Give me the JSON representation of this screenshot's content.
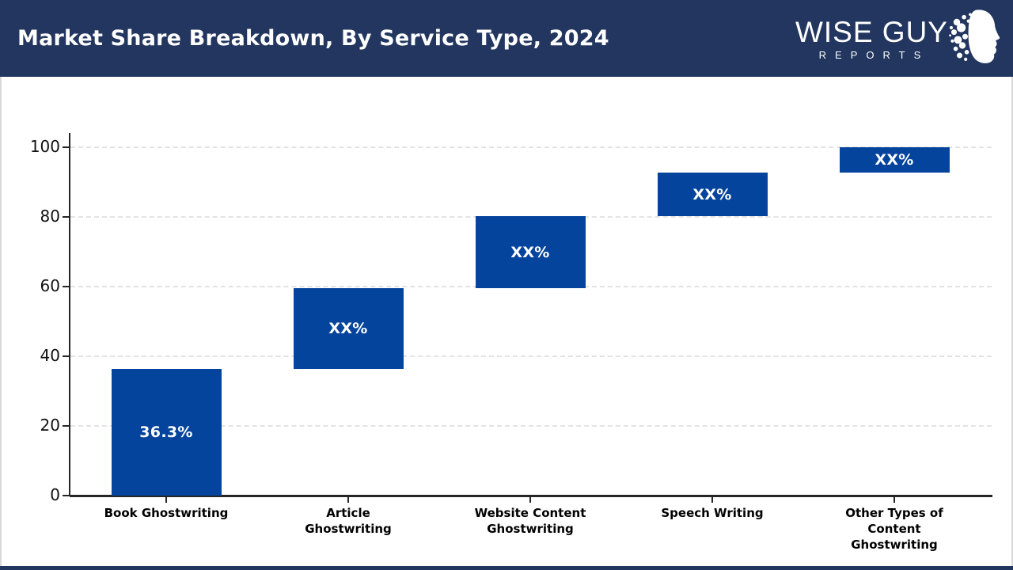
{
  "header": {
    "title": "Market Share Breakdown, By Service Type, 2024",
    "logo": {
      "line1": "WISE GUY",
      "line2": "REPORTS",
      "face_icon": "dotted-face-profile-icon"
    }
  },
  "watermark": {
    "line1": "WISE GUY",
    "line2": "REPORTS",
    "face_icon": "dotted-face-profile-watermark"
  },
  "colors": {
    "header_bg": "#22365F",
    "bar": "#05449C",
    "bar_label": "#FFFFFF",
    "title_text": "#FFFFFF",
    "gridline": "#E3E3E3",
    "axis": "#262626",
    "watermark": "#F1F1F1"
  },
  "chart_data": {
    "type": "bar",
    "subtype": "waterfall-cumulative",
    "title": "Market Share Breakdown, By Service Type, 2024",
    "xlabel": "",
    "ylabel": "",
    "units": "percent market share",
    "ylim": [
      0,
      100
    ],
    "yticks": [
      0,
      20,
      40,
      60,
      80,
      100
    ],
    "grid": "horizontal-dashed",
    "legend": "none",
    "categories": [
      "Book Ghostwriting",
      "Article Ghostwriting",
      "Website Content Ghostwriting",
      "Speech Writing",
      "Other Types of Content Ghostwriting"
    ],
    "segments": [
      {
        "category": "Book Ghostwriting",
        "lines": [
          "Book Ghostwriting"
        ],
        "start": 0,
        "end": 36.3,
        "value": 36.3,
        "value_label": "36.3%"
      },
      {
        "category": "Article Ghostwriting",
        "lines": [
          "Article",
          "Ghostwriting"
        ],
        "start": 36.3,
        "end": 59.5,
        "value": 23.2,
        "value_label": "XX%"
      },
      {
        "category": "Website Content Ghostwriting",
        "lines": [
          "Website Content",
          "Ghostwriting"
        ],
        "start": 59.5,
        "end": 80.2,
        "value": 20.7,
        "value_label": "XX%"
      },
      {
        "category": "Speech Writing",
        "lines": [
          "Speech Writing"
        ],
        "start": 80.2,
        "end": 92.7,
        "value": 12.5,
        "value_label": "XX%"
      },
      {
        "category": "Other Types of Content Ghostwriting",
        "lines": [
          "Other Types of",
          "Content",
          "Ghostwriting"
        ],
        "start": 92.7,
        "end": 100,
        "value": 7.3,
        "value_label": "XX%"
      }
    ],
    "note": "Values other than the first segment are masked as XX% in the source image"
  }
}
